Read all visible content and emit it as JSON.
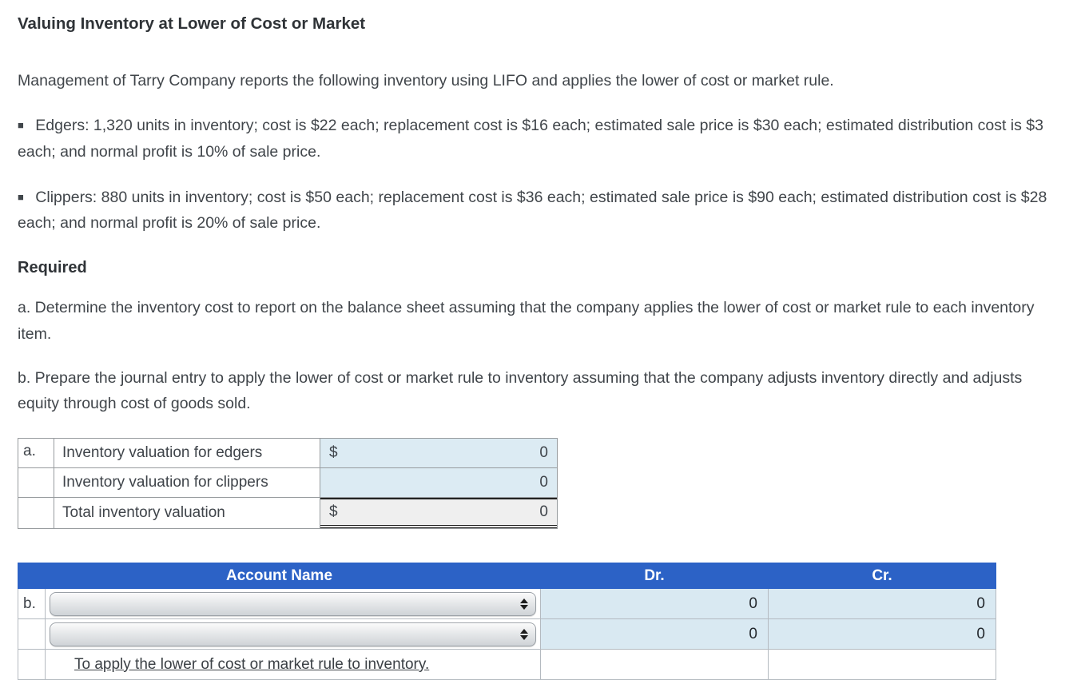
{
  "page": {
    "title": "Valuing Inventory at Lower of Cost or Market",
    "intro": "Management of Tarry Company reports the following inventory using LIFO and applies the lower of cost or market rule.",
    "bullet_glyph": "■",
    "bullets": [
      "Edgers: 1,320 units in inventory; cost is $22 each; replacement cost is $16 each; estimated sale price is $30 each; estimated distribution cost is $3 each; and normal profit is 10% of sale price.",
      "Clippers: 880 units in inventory; cost is $50 each; replacement cost is $36 each; estimated sale price is $90 each; estimated distribution cost is $28 each; and normal profit is 20% of sale price."
    ],
    "required_heading": "Required",
    "requirements": [
      "a. Determine the inventory cost to report on the balance sheet assuming that the company applies the lower of cost or market rule to each inventory item.",
      "b. Prepare the journal entry to apply the lower of cost or market rule to inventory assuming that the company adjusts inventory directly and adjusts equity through cost of goods sold."
    ]
  },
  "part_a": {
    "row_label": "a.",
    "rows": [
      {
        "label": "Inventory valuation for edgers",
        "prefix": "$",
        "value": "0"
      },
      {
        "label": "Inventory valuation for clippers",
        "prefix": "",
        "value": "0"
      },
      {
        "label": "Total inventory valuation",
        "prefix": "$",
        "value": "0"
      }
    ]
  },
  "part_b": {
    "row_label": "b.",
    "headers": {
      "account": "Account Name",
      "dr": "Dr.",
      "cr": "Cr."
    },
    "entries": [
      {
        "account": "",
        "dr": "0",
        "cr": "0"
      },
      {
        "account": "",
        "dr": "0",
        "cr": "0"
      }
    ],
    "note": "To apply the lower of cost or market rule to inventory."
  },
  "colors": {
    "header_blue": "#2c62c6",
    "field_blue": "#dcebf3",
    "money_blue": "#d9e9f2",
    "total_field_gray": "#efefef",
    "text": "#40454a"
  }
}
